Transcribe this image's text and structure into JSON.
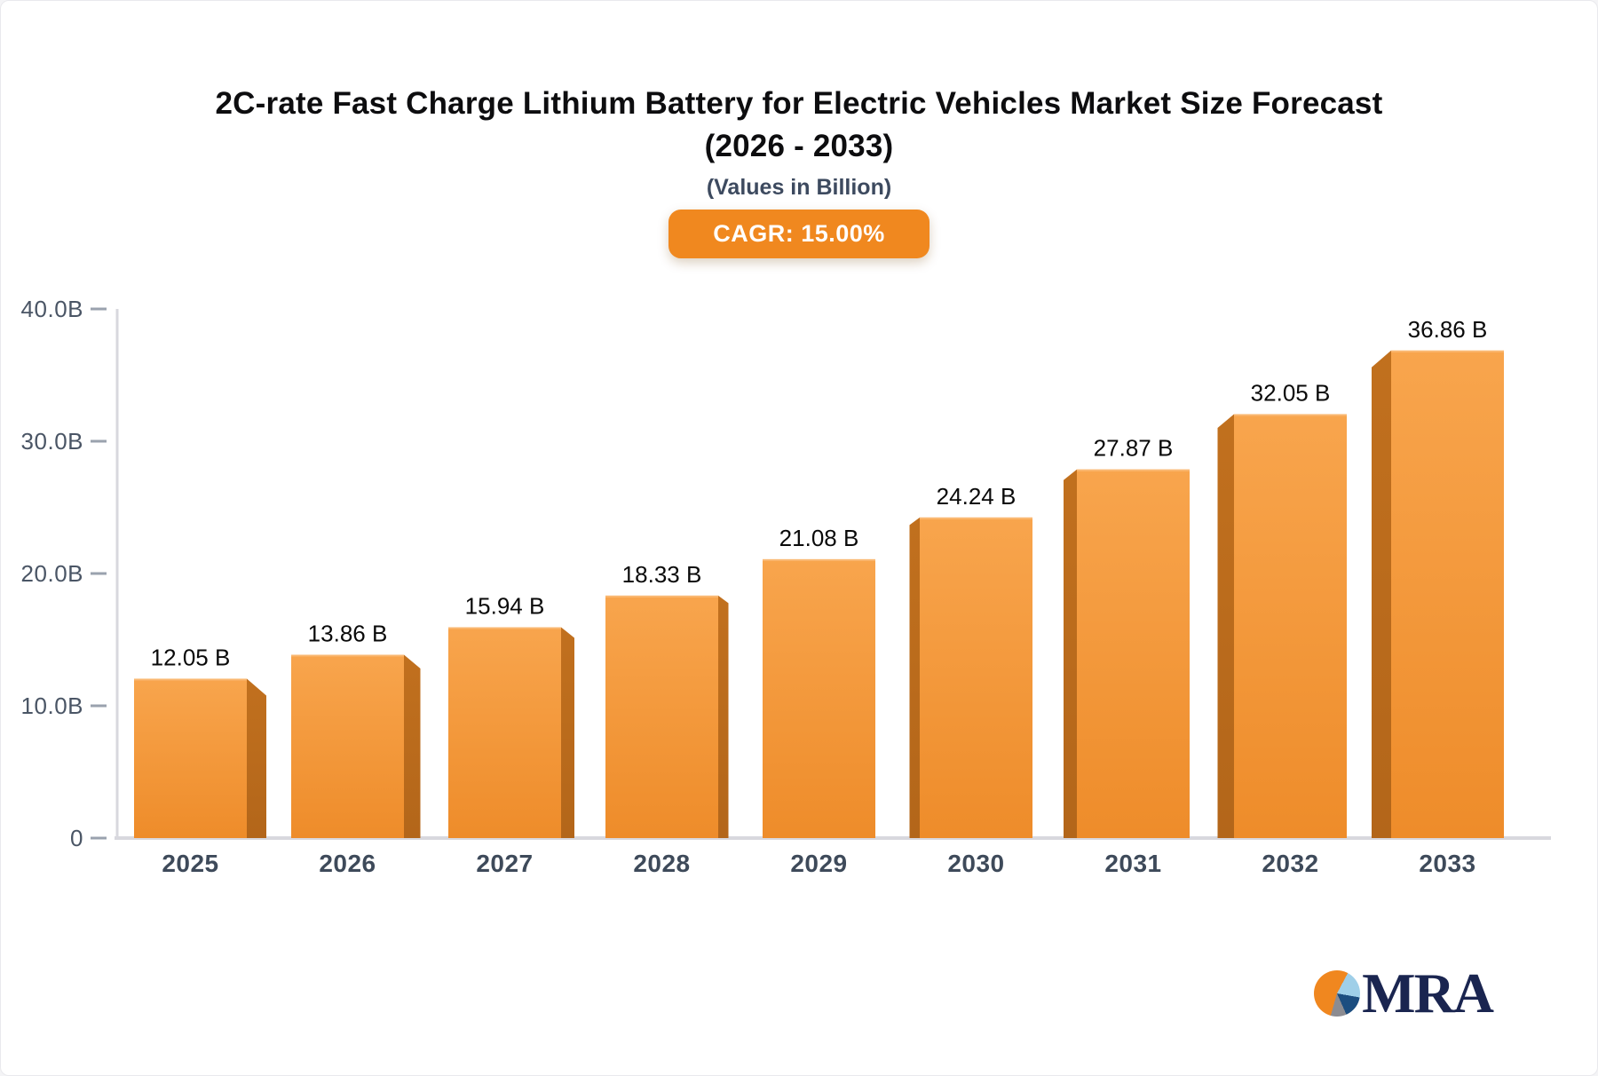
{
  "header": {
    "title_line1": "2C-rate Fast Charge Lithium Battery for Electric Vehicles Market Size Forecast",
    "title_line2": "(2026 - 2033)",
    "subtitle": "(Values in Billion)",
    "cagr_badge": "CAGR: 15.00%"
  },
  "chart_data": {
    "type": "bar",
    "title": "2C-rate Fast Charge Lithium Battery for Electric Vehicles Market Size Forecast (2026 - 2033)",
    "subtitle": "(Values in Billion)",
    "cagr": "15.00%",
    "categories": [
      "2025",
      "2026",
      "2027",
      "2028",
      "2029",
      "2030",
      "2031",
      "2032",
      "2033"
    ],
    "values": [
      12.05,
      13.86,
      15.94,
      18.33,
      21.08,
      24.24,
      27.87,
      32.05,
      36.86
    ],
    "value_labels": [
      "12.05 B",
      "13.86 B",
      "15.94 B",
      "18.33 B",
      "21.08 B",
      "24.24 B",
      "27.87 B",
      "32.05 B",
      "36.86 B"
    ],
    "xlabel": "",
    "ylabel": "",
    "ylim": [
      0,
      40
    ],
    "ytick_values": [
      0,
      10,
      20,
      30,
      40
    ],
    "ytick_labels": [
      "0",
      "10.0B",
      "20.0B",
      "30.0B",
      "40.0B"
    ],
    "grid": false,
    "legend": false,
    "bar_style": "3d-perspective-center"
  },
  "colors": {
    "bar_front_top": "#f8a54d",
    "bar_front_bottom": "#ee8c2a",
    "bar_side_top": "#c1701e",
    "bar_side_bottom": "#b3661a",
    "bar_top_highlight": "#fbc183",
    "axis_line": "#d8d8de",
    "tick_mark": "#9aa2ae",
    "ytick_text": "#4a5565",
    "xtick_text": "#3e4a5a",
    "value_text": "#0a0a0a",
    "badge_bg": "#f0881f",
    "logo_navy": "#1a2550"
  },
  "logo": {
    "text": "MRA",
    "pie_slices": [
      "orange",
      "light-blue",
      "dark-blue",
      "gray"
    ]
  }
}
